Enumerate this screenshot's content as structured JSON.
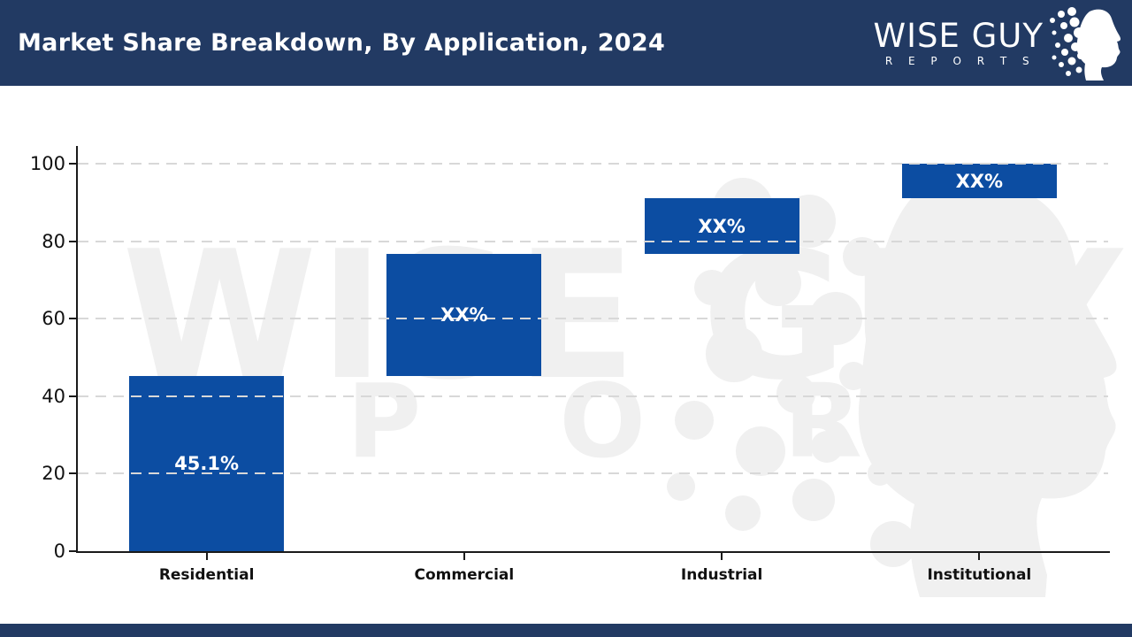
{
  "header": {
    "title": "Market Share Breakdown, By Application, 2024",
    "logo": {
      "wordmark": "WISE GUY",
      "subtext": "R E P O R T S"
    }
  },
  "watermark": {
    "line1": "WISE GUY",
    "line2": "P O R T S"
  },
  "chart_data": {
    "type": "bar",
    "subtype": "waterfall",
    "title": "Market Share Breakdown, By Application, 2024",
    "xlabel": "",
    "ylabel": "",
    "categories": [
      "Residential",
      "Commercial",
      "Industrial",
      "Institutional"
    ],
    "bars": [
      {
        "category": "Residential",
        "start": 0,
        "end": 45.1,
        "label": "45.1%"
      },
      {
        "category": "Commercial",
        "start": 45.1,
        "end": 76.6,
        "label": "XX%"
      },
      {
        "category": "Industrial",
        "start": 76.6,
        "end": 91.0,
        "label": "XX%"
      },
      {
        "category": "Institutional",
        "start": 91.0,
        "end": 100,
        "label": "XX%"
      }
    ],
    "ylim": [
      0,
      100
    ],
    "yticks": [
      0,
      20,
      40,
      60,
      80,
      100
    ],
    "grid": "horizontal dashed, drawn over bars",
    "legend": "none",
    "bar_color": "#0c4da2",
    "bar_label_color": "#ffffff"
  },
  "colors": {
    "header_bg": "#223a63",
    "footer_bg": "#223a63",
    "bar": "#0c4da2",
    "gridline": "#d8d8d8",
    "axis": "#1a1a1a",
    "watermark": "#f0f0f0"
  }
}
